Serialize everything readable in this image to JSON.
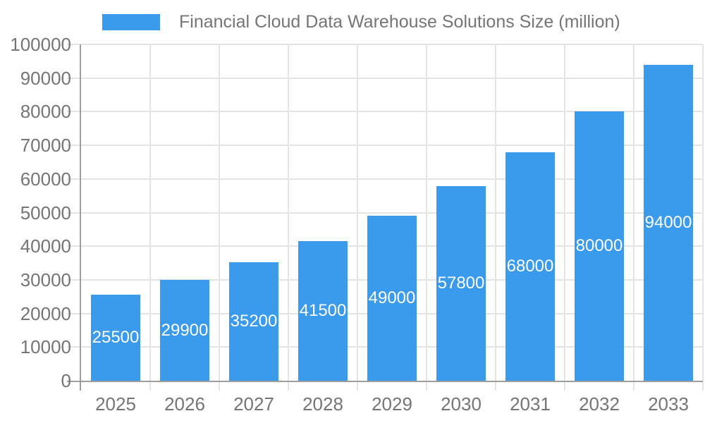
{
  "chart_data": {
    "type": "bar",
    "title": "Financial Cloud Data Warehouse Solutions Size (million)",
    "series_name": "Financial Cloud Data Warehouse Solutions Size (million)",
    "categories": [
      "2025",
      "2026",
      "2027",
      "2028",
      "2029",
      "2030",
      "2031",
      "2032",
      "2033"
    ],
    "values": [
      25500,
      29900,
      35200,
      41500,
      49000,
      57800,
      68000,
      80000,
      94000
    ],
    "value_labels": [
      "25500",
      "29900",
      "35200",
      "41500",
      "49000",
      "57800",
      "68000",
      "80000",
      "94000"
    ],
    "xlabel": "",
    "ylabel": "",
    "ylim": [
      0,
      100000
    ],
    "y_tick_step": 10000,
    "y_tick_labels": [
      "0",
      "10000",
      "20000",
      "30000",
      "40000",
      "50000",
      "60000",
      "70000",
      "80000",
      "90000",
      "100000"
    ],
    "grid": true,
    "legend_position": "top",
    "value_label_position": "inside-center"
  },
  "colors": {
    "bar": "#3A9AEC",
    "value_label": "#ffffff",
    "text": "#757575",
    "grid": "#e4e4e4",
    "axis": "#9e9e9e",
    "background": "#ffffff"
  }
}
